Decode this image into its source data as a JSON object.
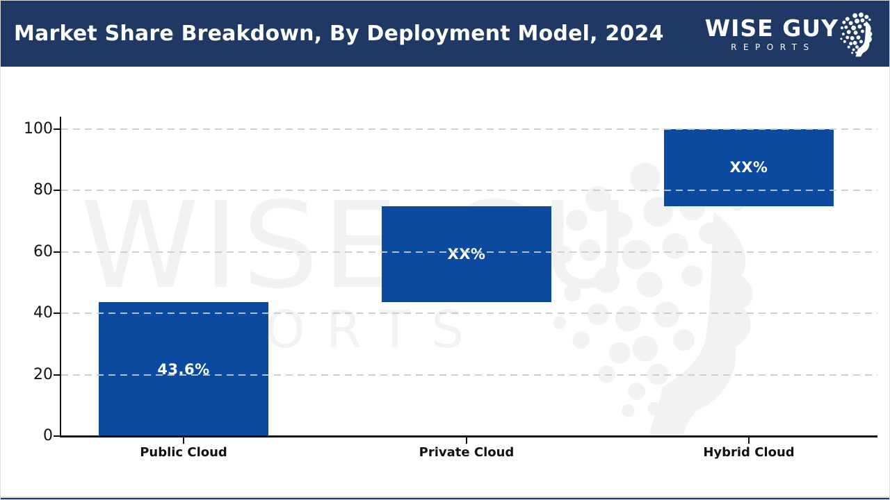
{
  "header": {
    "title": "Market Share Breakdown, By Deployment Model, 2024",
    "bg_color": "#1f3864",
    "logo": {
      "line1": "WISE GUY",
      "line2": "REPORTS"
    }
  },
  "watermark": {
    "text_main": "WISE GU",
    "text_sub": "REPORTS"
  },
  "chart_data": {
    "type": "bar",
    "variant": "floating-stacked-breakdown",
    "title": "Market Share Breakdown, By Deployment Model, 2024",
    "categories": [
      "Public Cloud",
      "Private Cloud",
      "Hybrid Cloud"
    ],
    "segments": [
      {
        "category": "Public Cloud",
        "start": 0,
        "end": 43.6,
        "label": "43.6%"
      },
      {
        "category": "Private Cloud",
        "start": 43.6,
        "end": 74.9,
        "label": "XX%"
      },
      {
        "category": "Hybrid Cloud",
        "start": 74.9,
        "end": 100,
        "label": "XX%"
      }
    ],
    "xlabel": "",
    "ylabel": "",
    "ylim": [
      0,
      100
    ],
    "yticks": [
      0,
      20,
      40,
      60,
      80,
      100
    ],
    "grid": "dashed horizontal gridlines",
    "legend": "none",
    "bar_color": "#0b4a9e",
    "label_color": "#ffffff"
  }
}
